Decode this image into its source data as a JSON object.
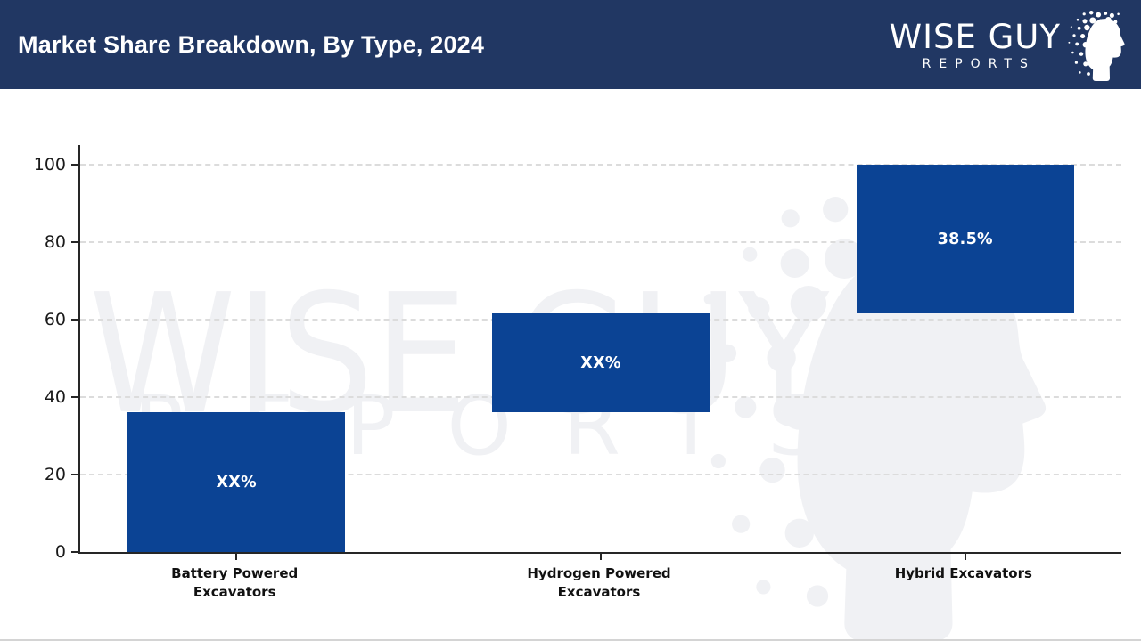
{
  "header": {
    "title": "Market Share Breakdown, By Type, 2024",
    "logo_line1": "WISE GUY",
    "logo_line2": "REPORTS",
    "bg_color": "#213763"
  },
  "watermark": {
    "line1": "WISE GUY",
    "line2": "REPORTS"
  },
  "chart_data": {
    "type": "bar",
    "subtype": "stacked-waterfall",
    "title": "Market Share Breakdown, By Type, 2024",
    "categories": [
      "Battery Powered Excavators",
      "Hydrogen Powered Excavators",
      "Hybrid Excavators"
    ],
    "category_label_lines": [
      [
        "Battery Powered",
        "Excavators"
      ],
      [
        "Hydrogen Powered",
        "Excavators"
      ],
      [
        "Hybrid Excavators"
      ]
    ],
    "segments": [
      {
        "category": "Battery Powered Excavators",
        "start": 0,
        "end": 36,
        "value_label": "XX%"
      },
      {
        "category": "Hydrogen Powered Excavators",
        "start": 36,
        "end": 61.5,
        "value_label": "XX%"
      },
      {
        "category": "Hybrid Excavators",
        "start": 61.5,
        "end": 100,
        "value_label": "38.5%"
      }
    ],
    "ylabel": "",
    "xlabel": "",
    "yticks": [
      0,
      20,
      40,
      60,
      80,
      100
    ],
    "ylim": [
      0,
      105
    ],
    "bar_color": "#0b4394",
    "value_label_color": "#ffffff",
    "axis_color": "#262626",
    "grid": {
      "horizontal": true,
      "style": "dashed",
      "color": "#dcdcdc"
    },
    "legend": "none",
    "x_centers_pct": [
      15,
      50,
      85
    ],
    "bar_width_pct": 20.9
  }
}
